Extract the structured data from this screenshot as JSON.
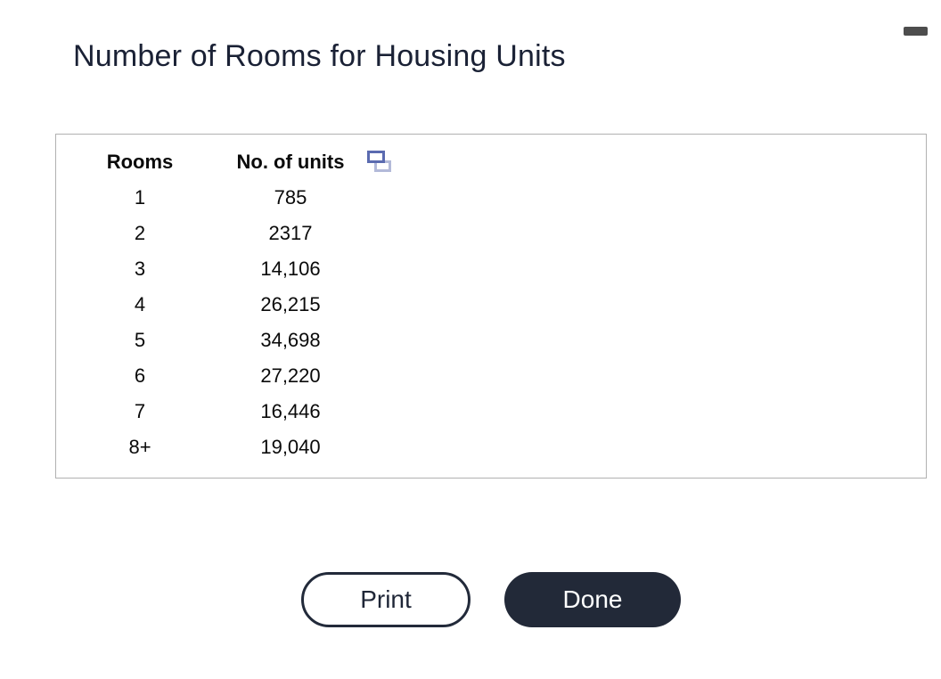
{
  "title": "Number of Rooms for Housing Units",
  "table": {
    "columns": [
      "Rooms",
      "No. of units"
    ],
    "rows": [
      [
        "1",
        "785"
      ],
      [
        "2",
        "2317"
      ],
      [
        "3",
        "14,106"
      ],
      [
        "4",
        "26,215"
      ],
      [
        "5",
        "34,698"
      ],
      [
        "6",
        "27,220"
      ],
      [
        "7",
        "16,446"
      ],
      [
        "8+",
        "19,040"
      ]
    ]
  },
  "buttons": {
    "print": "Print",
    "done": "Done"
  },
  "icons": {
    "copy": "copy-icon",
    "window_dash": "minimize-dash-icon"
  },
  "colors": {
    "title_navy": "#1a2135",
    "done_button_bg": "#222938",
    "print_button_border": "#222a3a",
    "panel_border": "#b1b1b1",
    "copy_icon_front": "#5b6bb0",
    "copy_icon_back": "#b3bad9",
    "window_dash": "#4d4d4d"
  }
}
